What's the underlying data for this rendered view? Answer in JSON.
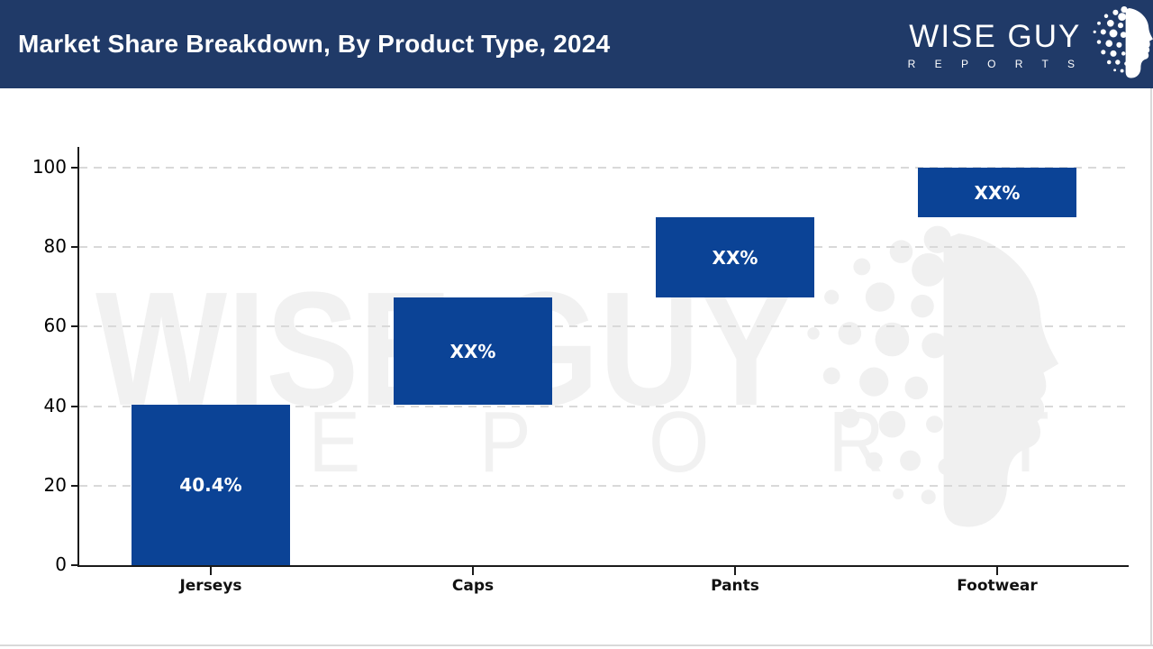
{
  "header": {
    "title": "Market Share Breakdown, By Product Type, 2024",
    "bg_color": "#203a68",
    "logo": {
      "line1": "WISE GUY",
      "line2": "R E P O R T S"
    }
  },
  "watermark": {
    "line1": "WISE GUY",
    "line2": "R E P O R T S"
  },
  "chart_data": {
    "type": "bar",
    "subtype": "waterfall",
    "title": "Market Share Breakdown, By Product Type, 2024",
    "categories": [
      "Jerseys",
      "Caps",
      "Pants",
      "Footwear"
    ],
    "segments": [
      {
        "category": "Jerseys",
        "start": 0,
        "end": 40.4,
        "value": 40.4,
        "label": "40.4%"
      },
      {
        "category": "Caps",
        "start": 40.4,
        "end": 67.4,
        "value": 27.0,
        "label": "XX%"
      },
      {
        "category": "Pants",
        "start": 67.4,
        "end": 87.6,
        "value": 20.2,
        "label": "XX%"
      },
      {
        "category": "Footwear",
        "start": 87.6,
        "end": 100,
        "value": 12.4,
        "label": "XX%"
      }
    ],
    "xlabel": "",
    "ylabel": "",
    "ylim": [
      0,
      100
    ],
    "yticks": [
      0,
      20,
      40,
      60,
      80,
      100
    ],
    "grid": "horizontal dashed",
    "grid_color": "#d9d9d9",
    "legend": "none",
    "bar_color": "#0b4396",
    "bar_label_color": "#ffffff",
    "axis_color": "#1a1a1a"
  }
}
